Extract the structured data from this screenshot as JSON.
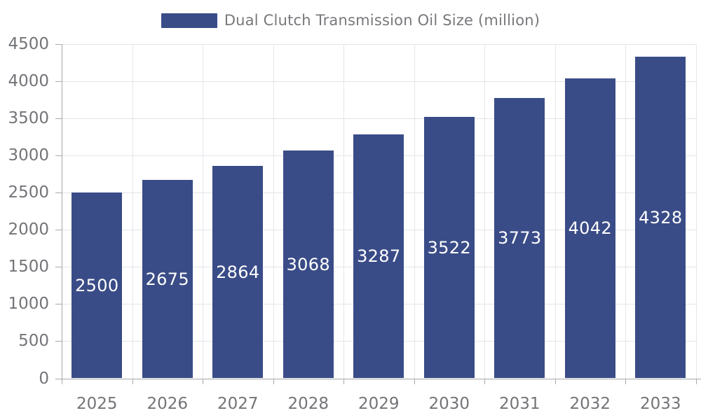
{
  "chart_data": {
    "type": "bar",
    "legend": "Dual Clutch Transmission Oil Size (million)",
    "categories": [
      "2025",
      "2026",
      "2027",
      "2028",
      "2029",
      "2030",
      "2031",
      "2032",
      "2033"
    ],
    "values": [
      2500,
      2675,
      2864,
      3068,
      3287,
      3522,
      3773,
      4042,
      4328
    ],
    "ylim": [
      0,
      4500
    ],
    "ytick_step": 500,
    "ytick_labels": [
      "0",
      "500",
      "1000",
      "1500",
      "2000",
      "2500",
      "3000",
      "3500",
      "4000",
      "4500"
    ],
    "xlabel": "",
    "ylabel": "",
    "grid": true,
    "legend_position": "top-center",
    "value_label_position": "inside-center"
  },
  "colors": {
    "bar": "#3A4C87",
    "grid_line": "#E2E4EA",
    "axis_line": "#A7A8AB",
    "axis_text": "#737478",
    "legend_text": "#77787B",
    "value_text": "#FFFFFF",
    "background": "#FFFFFF"
  }
}
